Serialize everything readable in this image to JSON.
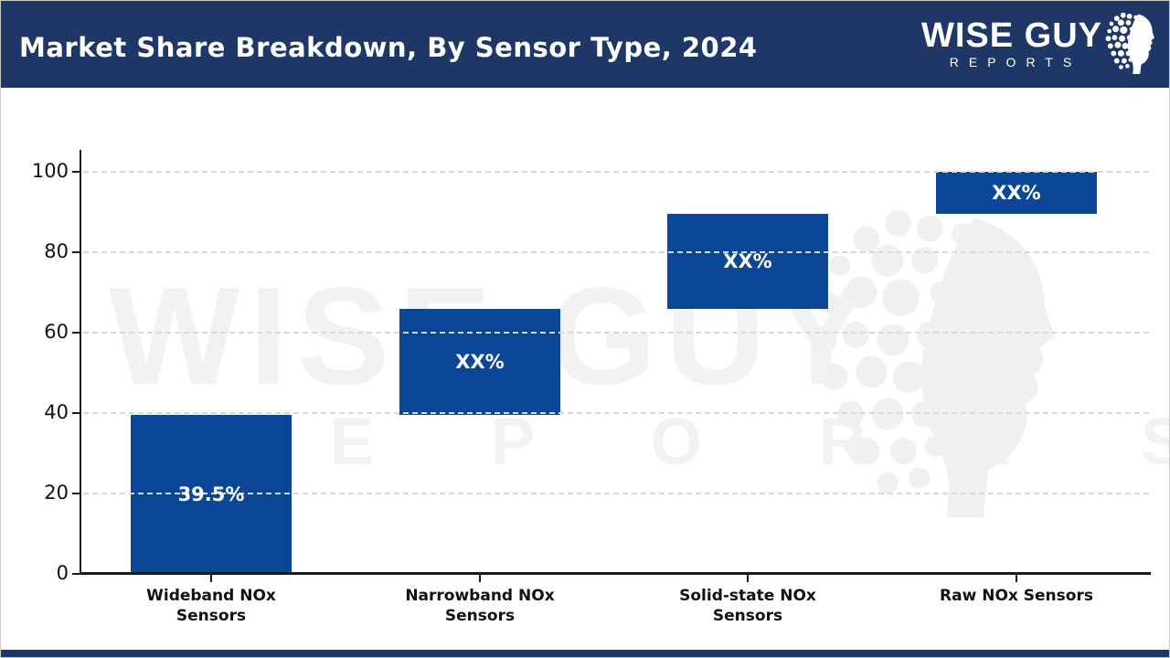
{
  "header": {
    "title": "Market Share Breakdown, By Sensor Type, 2024",
    "logo": {
      "line1": "WISE GUY",
      "line2": "REPORTS",
      "head_icon": "dotted-head-profile-icon"
    }
  },
  "watermark": {
    "line1": "WISE GUY",
    "line2": "REPORTS",
    "head_icon": "dotted-head-profile-icon"
  },
  "colors": {
    "header_bg": "#1f3766",
    "footer_bg": "#1f3766",
    "bar": "#0b4697",
    "bar_label": "#ffffff",
    "grid": "#d9d9d9",
    "axis": "#1a1a1a",
    "watermark": "#f2f2f2"
  },
  "chart_data": {
    "type": "bar",
    "subtype": "floating-waterfall",
    "title": "Market Share Breakdown, By Sensor Type, 2024",
    "categories": [
      "Wideband NOx\nSensors",
      "Narrowband NOx\nSensors",
      "Solid-state NOx\nSensors",
      "Raw NOx Sensors"
    ],
    "segments": [
      [
        0,
        39.5
      ],
      [
        39.5,
        66
      ],
      [
        66,
        89.5
      ],
      [
        89.5,
        100
      ]
    ],
    "bar_labels": [
      "39.5%",
      "XX%",
      "XX%",
      "XX%"
    ],
    "yticks": [
      0,
      20,
      40,
      60,
      80,
      100
    ],
    "ylim": [
      0,
      105
    ],
    "xlabel": "",
    "ylabel": "",
    "grid": "dashed-horizontal",
    "legend": "none"
  }
}
